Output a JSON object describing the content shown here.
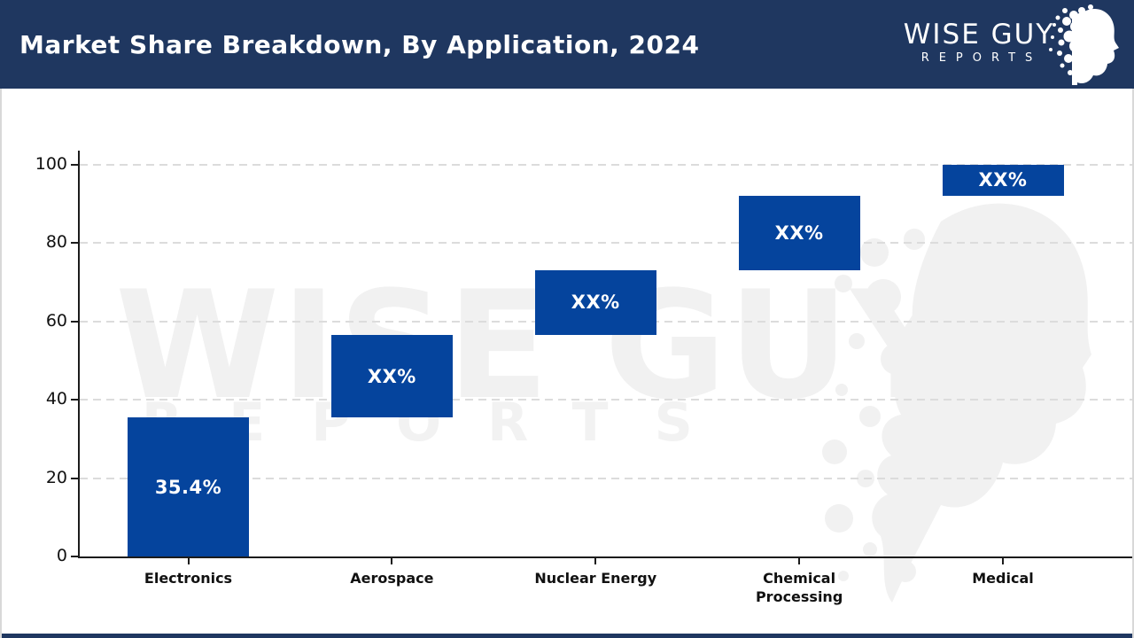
{
  "header": {
    "title": "Market Share Breakdown, By Application, 2024",
    "logo": {
      "line1": "WISE GUY",
      "line2": "REPORTS"
    }
  },
  "watermark": {
    "line1": "WISE GUY",
    "line2": "REPORTS"
  },
  "colors": {
    "header_bg": "#1f3760",
    "bar": "#05449d",
    "bar_label": "#ffffff",
    "axis": "#1c1c1c",
    "grid": "#dcdcdc",
    "tick_label": "#111111",
    "watermark": "#f1f1f1"
  },
  "chart_data": {
    "type": "bar",
    "subtype": "waterfall",
    "title": "Market Share Breakdown, By Application, 2024",
    "categories": [
      "Electronics",
      "Aerospace",
      "Nuclear Energy",
      "Chemical Processing",
      "Medical"
    ],
    "xtick_labels": [
      "Electronics",
      "Aerospace",
      "Nuclear Energy",
      "Chemical\nProcessing",
      "Medical"
    ],
    "series": [
      {
        "name": "Market share",
        "ranges": [
          [
            0,
            35.4
          ],
          [
            35.4,
            56.5
          ],
          [
            56.5,
            73.0
          ],
          [
            73.0,
            92.0
          ],
          [
            92.0,
            100.0
          ]
        ]
      }
    ],
    "bar_labels": [
      "35.4%",
      "XX%",
      "XX%",
      "XX%",
      "XX%"
    ],
    "yticks": [
      0,
      20,
      40,
      60,
      80,
      100
    ],
    "ylim": [
      0,
      103.5
    ],
    "xlabel": "",
    "ylabel": "",
    "grid": "horizontal-dashed",
    "legend": "none"
  }
}
